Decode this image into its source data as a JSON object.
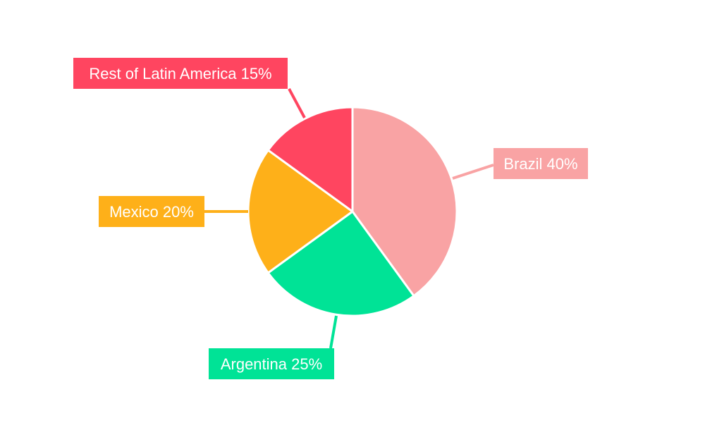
{
  "chart_data": {
    "type": "pie",
    "title": "",
    "slices": [
      {
        "name": "Brazil",
        "value": 40,
        "label": "Brazil 40%",
        "color": "#f9a3a4"
      },
      {
        "name": "Argentina",
        "value": 25,
        "label": "Argentina 25%",
        "color": "#00e396"
      },
      {
        "name": "Mexico",
        "value": 20,
        "label": "Mexico 20%",
        "color": "#feb019"
      },
      {
        "name": "Rest of Latin America",
        "value": 15,
        "label": "Rest of Latin America 15%",
        "color": "#ff4560"
      }
    ],
    "start_angle_deg": 0,
    "direction": "clockwise",
    "slice_border_color": "#ffffff",
    "legend": "none"
  }
}
